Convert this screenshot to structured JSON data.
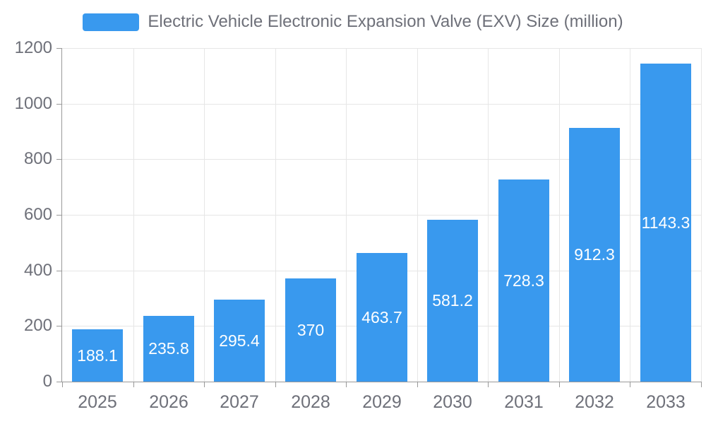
{
  "chart_data": {
    "type": "bar",
    "title": "Electric Vehicle Electronic Expansion Valve (EXV) Size (million)",
    "categories": [
      "2025",
      "2026",
      "2027",
      "2028",
      "2029",
      "2030",
      "2031",
      "2032",
      "2033"
    ],
    "series": [
      {
        "name": "Electric Vehicle Electronic Expansion Valve (EXV) Size (million)",
        "values": [
          188.1,
          235.8,
          295.4,
          370,
          463.7,
          581.2,
          728.3,
          912.3,
          1143.3
        ]
      }
    ],
    "value_labels": [
      "188.1",
      "235.8",
      "295.4",
      "370",
      "463.7",
      "581.2",
      "728.3",
      "912.3",
      "1143.3"
    ],
    "xlabel": "",
    "ylabel": "",
    "ylim": [
      0,
      1200
    ],
    "yticks": [
      0,
      200,
      400,
      600,
      800,
      1000,
      1200
    ],
    "grid": true,
    "legend_position": "top",
    "colors": {
      "bar": "#3999ee",
      "grid": "#e6e6e6",
      "axis": "#999999",
      "tick_text": "#6e7079",
      "bar_label_text": "#ffffff"
    }
  }
}
